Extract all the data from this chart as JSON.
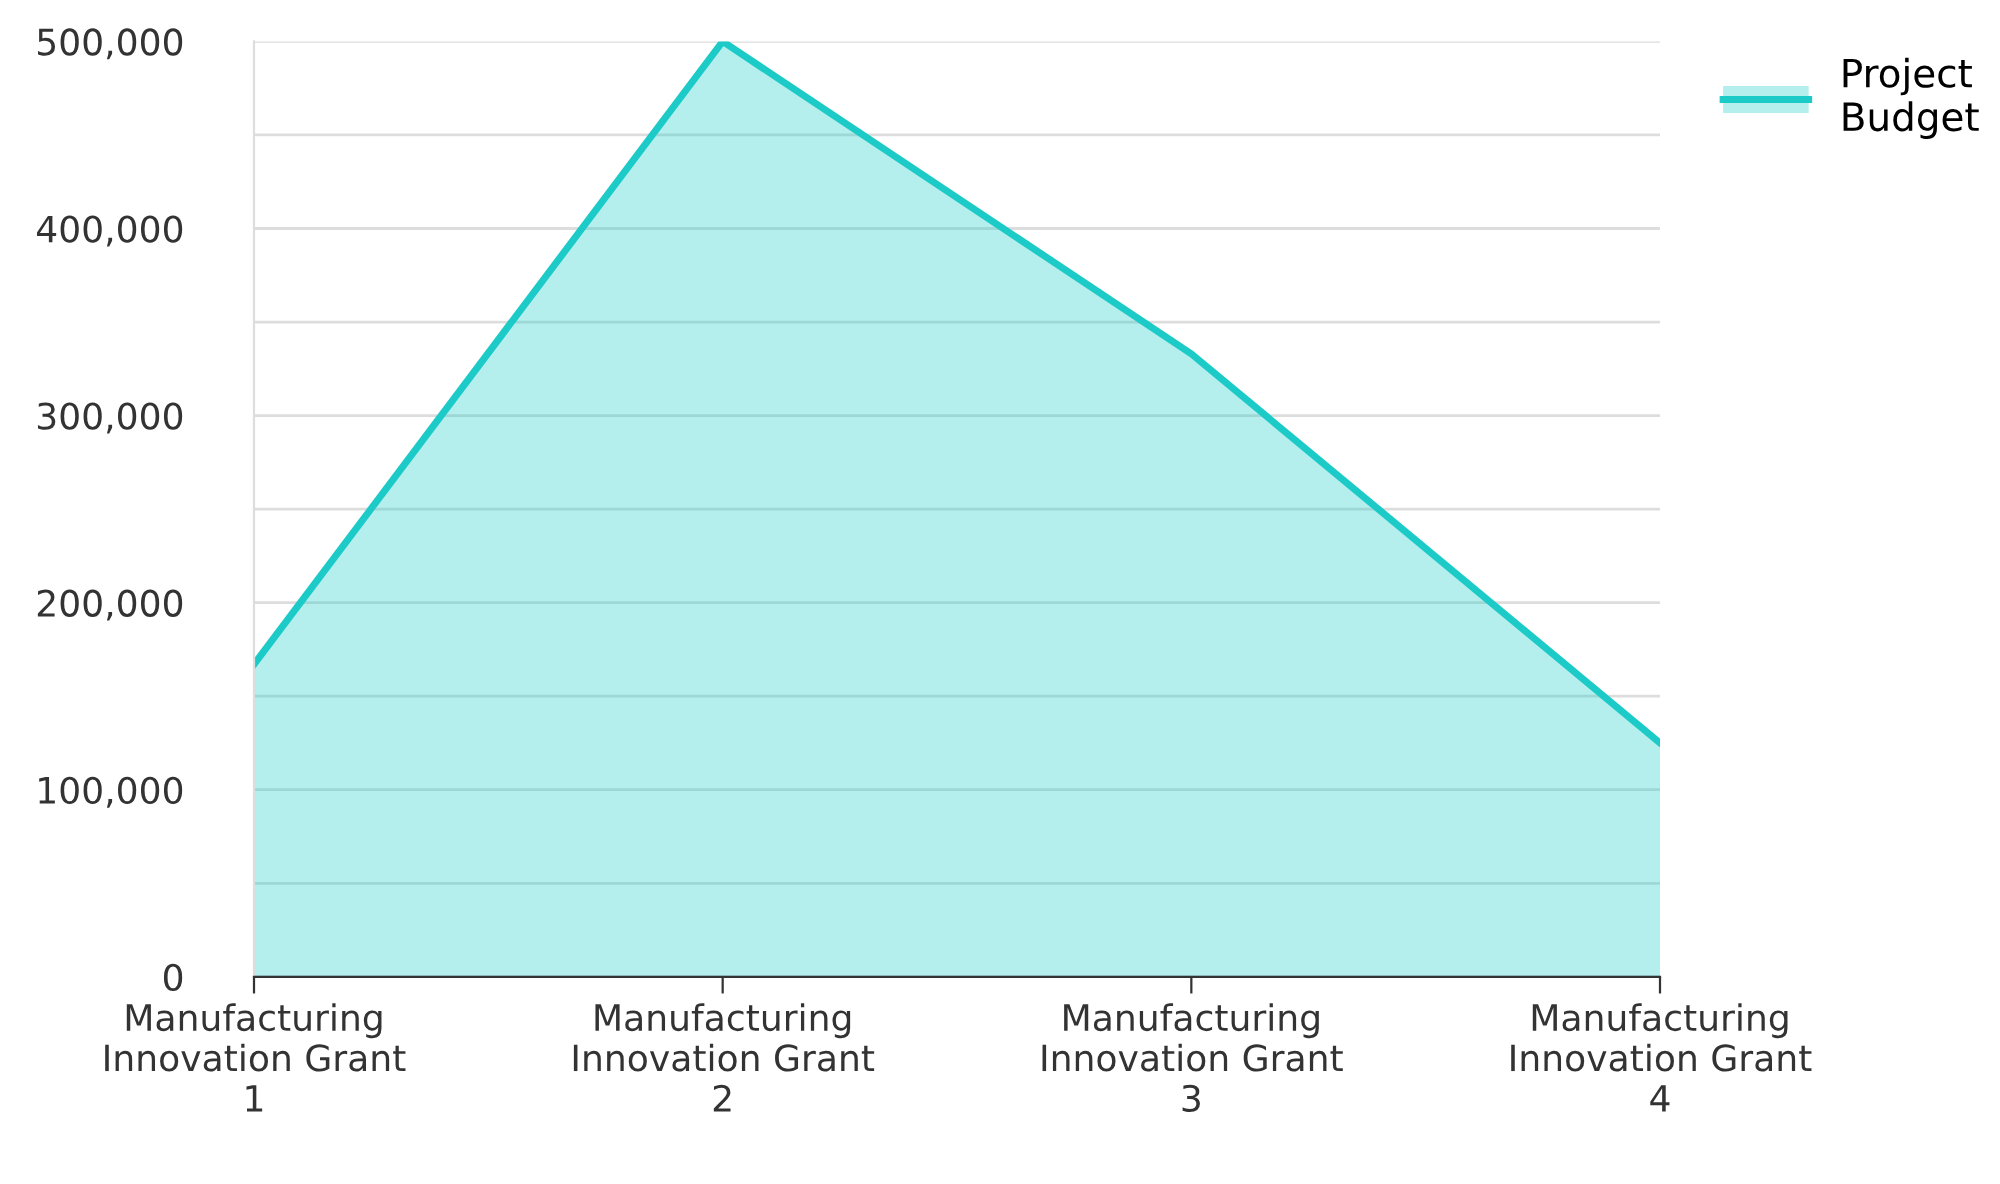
{
  "chart_data": {
    "type": "area",
    "categories": [
      "Manufacturing\nInnovation Grant\n1",
      "Manufacturing\nInnovation Grant\n2",
      "Manufacturing\nInnovation Grant\n3",
      "Manufacturing\nInnovation Grant\n4"
    ],
    "series": [
      {
        "name": "Project\nBudget",
        "color": "#1ccbc8",
        "values": [
          167000,
          500000,
          333000,
          125000
        ]
      }
    ],
    "ylim": [
      0,
      500000
    ],
    "yticks": [
      0,
      {
        "value": 50000,
        "label": null
      },
      {
        "value": 100000,
        "label": "100,000"
      },
      {
        "value": 150000,
        "label": null
      },
      {
        "value": 200000,
        "label": "200,000"
      },
      {
        "value": 250000,
        "label": null
      },
      {
        "value": 300000,
        "label": "300,000"
      },
      {
        "value": 350000,
        "label": null
      },
      {
        "value": 400000,
        "label": "400,000"
      },
      {
        "value": 450000,
        "label": null
      },
      {
        "value": 500000,
        "label": "500,000"
      }
    ],
    "grid": true,
    "legend": "top right"
  }
}
